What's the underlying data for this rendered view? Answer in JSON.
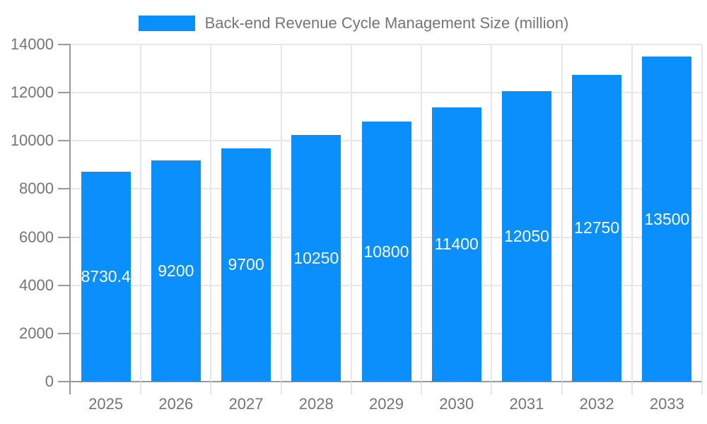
{
  "chart_data": {
    "type": "bar",
    "title": "Back-end Revenue Cycle Management Size (million)",
    "categories": [
      "2025",
      "2026",
      "2027",
      "2028",
      "2029",
      "2030",
      "2031",
      "2032",
      "2033"
    ],
    "values": [
      8730.4,
      9200,
      9700,
      10250,
      10800,
      11400,
      12050,
      12750,
      13500
    ],
    "value_labels": [
      "8730.4",
      "9200",
      "9700",
      "10250",
      "10800",
      "11400",
      "12050",
      "12750",
      "13500"
    ],
    "xlabel": "",
    "ylabel": "",
    "ylim": [
      0,
      14000
    ],
    "y_ticks": [
      0,
      2000,
      4000,
      6000,
      8000,
      10000,
      12000,
      14000
    ],
    "legend_position": "top",
    "grid": true,
    "colors": {
      "bar": "#0A8FFC",
      "grid_line": "#e7e7e7",
      "axis_line": "#999999",
      "tick_label": "#757575",
      "bar_label": "#ffffff",
      "background": "#ffffff"
    }
  }
}
